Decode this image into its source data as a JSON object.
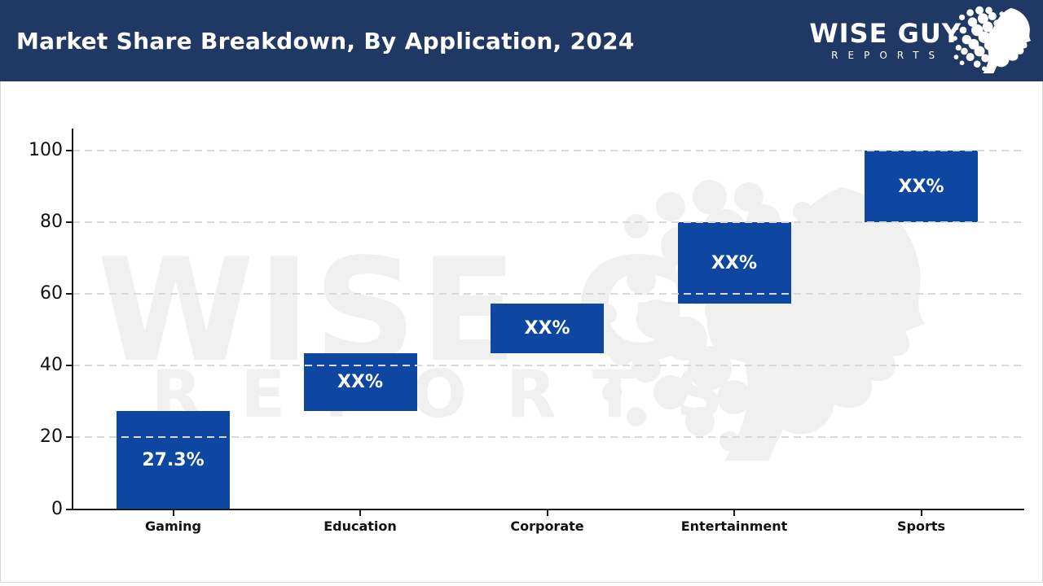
{
  "header": {
    "title": "Market Share Breakdown, By Application, 2024",
    "logo": {
      "line1": "WISE GUY",
      "line2": "REPORTS"
    }
  },
  "watermark": {
    "line1": "WISE GUY",
    "line2": "REPORTS"
  },
  "colors": {
    "header_bg": "#1f3864",
    "bar": "#0d47a1",
    "bar_label": "#ffffff",
    "gridline": "#d9d9d9",
    "axis": "#1a1a1a",
    "tick_label": "#111111",
    "category_label": "#111111",
    "watermark": "#f0f0f0"
  },
  "chart_data": {
    "type": "bar",
    "subtype": "floating-waterfall",
    "title": "Market Share Breakdown, By Application, 2024",
    "categories": [
      "Gaming",
      "Education",
      "Corporate",
      "Entertainment",
      "Sports"
    ],
    "segments": [
      {
        "category": "Gaming",
        "start": 0,
        "end": 27.3,
        "label": "27.3%"
      },
      {
        "category": "Education",
        "start": 27.3,
        "end": 43.5,
        "label": "XX%"
      },
      {
        "category": "Corporate",
        "start": 43.5,
        "end": 57.3,
        "label": "XX%"
      },
      {
        "category": "Entertainment",
        "start": 57.3,
        "end": 80,
        "label": "XX%"
      },
      {
        "category": "Sports",
        "start": 80,
        "end": 100,
        "label": "XX%"
      }
    ],
    "xlabel": "",
    "ylabel": "",
    "ylim": [
      0,
      105
    ],
    "yticks": [
      0,
      20,
      40,
      60,
      80,
      100
    ],
    "grid": "horizontal-dashed",
    "legend": "none",
    "bar_color": "#0d47a1"
  }
}
